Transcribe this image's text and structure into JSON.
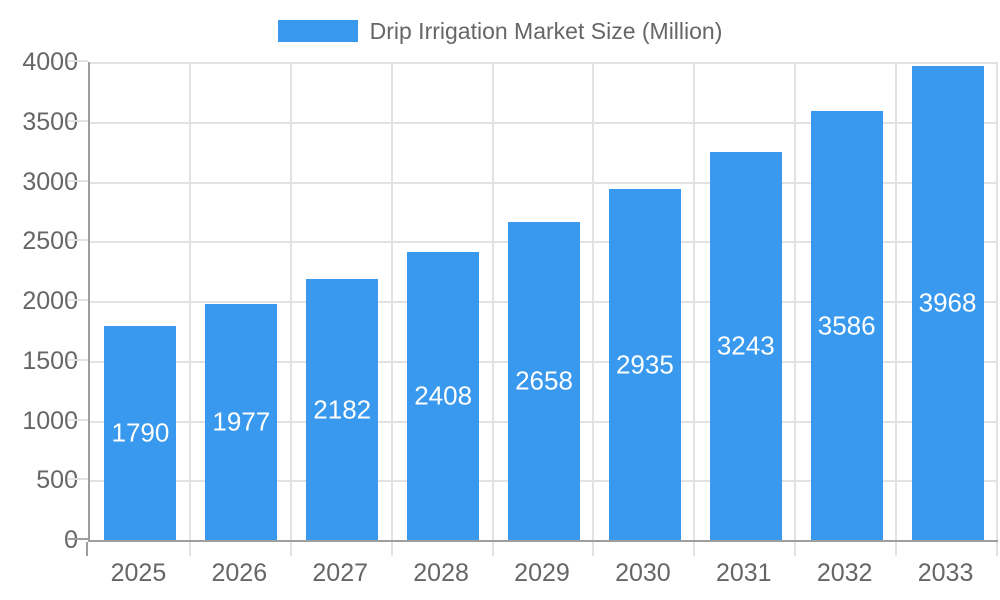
{
  "legend": {
    "label": "Drip Irrigation Market Size (Million)"
  },
  "colors": {
    "bar": "#3999EE",
    "bar_label": "#FFFFFF",
    "axis_line": "#9E9E9E",
    "gridline": "#E2E2E2",
    "tick_label": "#666666",
    "background": "#FFFFFF"
  },
  "chart_data": {
    "type": "bar",
    "title": "Drip Irrigation Market Size (Million)",
    "legend_position": "top",
    "grid": true,
    "categories": [
      "2025",
      "2026",
      "2027",
      "2028",
      "2029",
      "2030",
      "2031",
      "2032",
      "2033"
    ],
    "series": [
      {
        "name": "Drip Irrigation Market Size (Million)",
        "values": [
          1790,
          1977,
          2182,
          2408,
          2658,
          2935,
          3243,
          3586,
          3968
        ]
      }
    ],
    "bar_labels_visible": true,
    "bar_label_position": "inside-center",
    "xlabel": "",
    "ylabel": "",
    "ylim": [
      0,
      4000
    ],
    "ytick_interval": 500,
    "yticks": [
      "0",
      "500",
      "1000",
      "1500",
      "2000",
      "2500",
      "3000",
      "3500",
      "4000"
    ]
  }
}
